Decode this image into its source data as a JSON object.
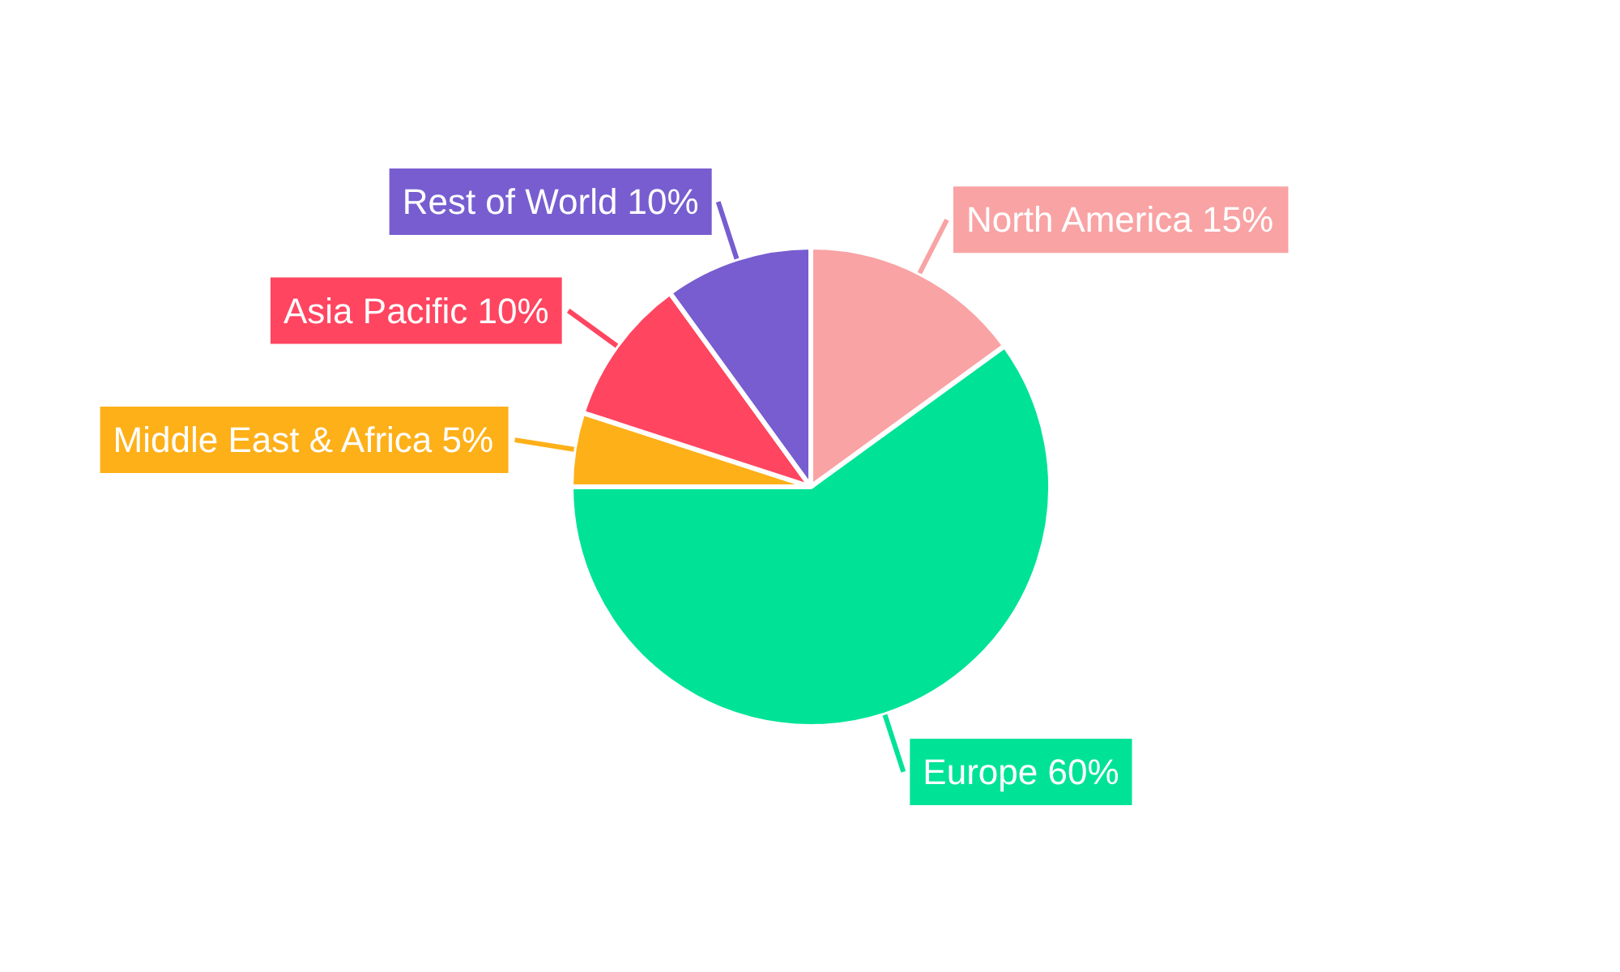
{
  "chart_data": {
    "type": "pie",
    "categories": [
      "North America",
      "Europe",
      "Middle East & Africa",
      "Asia Pacific",
      "Rest of World"
    ],
    "values": [
      15,
      60,
      5,
      10,
      10
    ],
    "colors": [
      "#f9a3a4",
      "#00e396",
      "#feb019",
      "#ff4560",
      "#775dd0"
    ],
    "value_labels": [
      "15%",
      "60%",
      "5%",
      "10%",
      "10%"
    ]
  }
}
